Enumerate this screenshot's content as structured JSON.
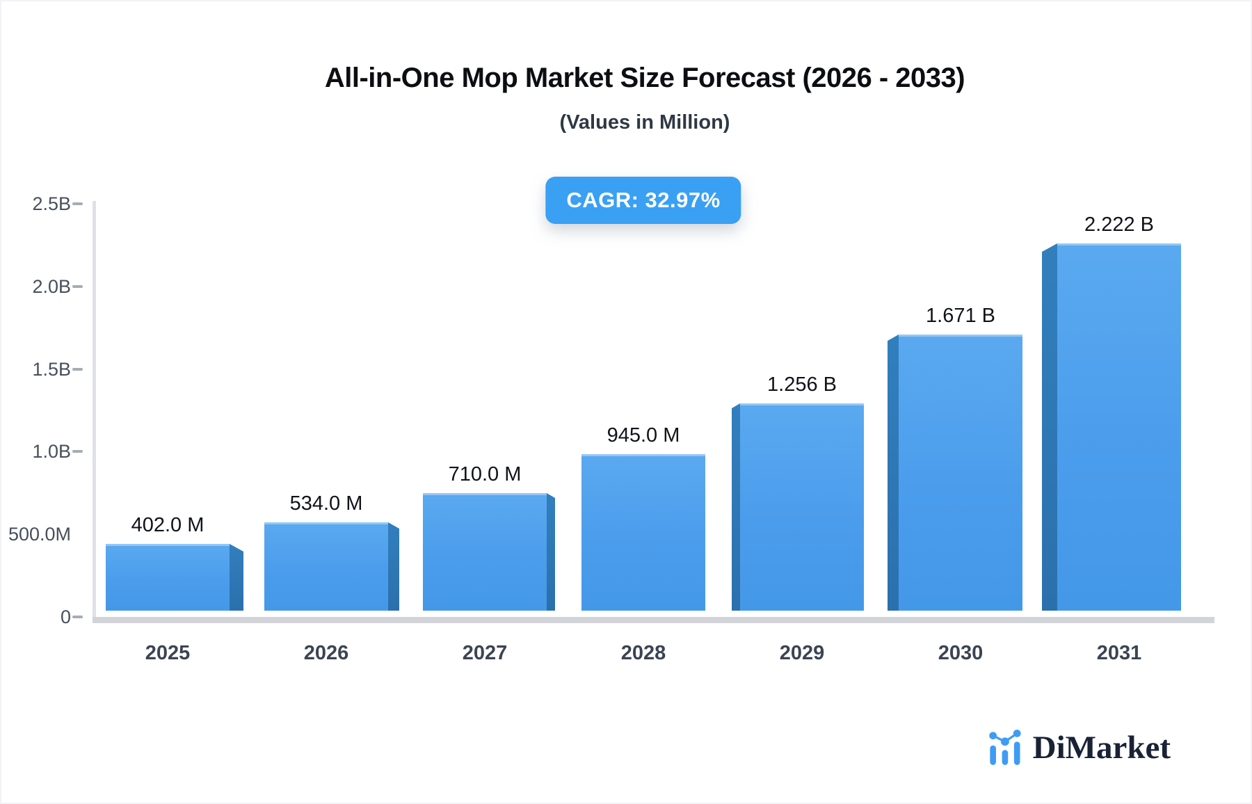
{
  "header": {
    "title": "All-in-One Mop Market Size Forecast (2026 - 2033)",
    "subtitle": "(Values in Million)"
  },
  "badge": {
    "label": "CAGR: 32.97%"
  },
  "chart_data": {
    "type": "bar",
    "title": "All-in-One Mop Market Size Forecast (2026 - 2033)",
    "subtitle": "(Values in Million)",
    "cagr_percent": 32.97,
    "categories": [
      "2025",
      "2026",
      "2027",
      "2028",
      "2029",
      "2030",
      "2031"
    ],
    "values_millions": [
      402.0,
      534.0,
      710.0,
      945.0,
      1256.0,
      1671.0,
      2222.0
    ],
    "bar_labels": [
      "402.0 M",
      "534.0 M",
      "710.0 M",
      "945.0 M",
      "1.256 B",
      "1.671 B",
      "2.222 B"
    ],
    "y_axis": [
      {
        "label": "2.5B",
        "tick": true
      },
      {
        "label": "2.0B",
        "tick": true
      },
      {
        "label": "1.5B",
        "tick": true
      },
      {
        "label": "1.0B",
        "tick": true
      },
      {
        "label": "500.0M",
        "tick": false
      },
      {
        "label": "0",
        "tick": true
      }
    ],
    "ylim": [
      0,
      2500
    ],
    "grid": false,
    "legend": false,
    "bar_style": "3d-extruded-center-vanishing",
    "bar_face_color": "#4b9dec",
    "bar_side_color": "#2d75b2",
    "baseline_color": "#d2d4d9",
    "axis_line_color": "#dfe1e6"
  },
  "logo": {
    "text": "DiMarket",
    "icon": "mini-bar-chart-logo-icon",
    "icon_color": "#3f9cf5",
    "text_color": "#1a2236"
  }
}
